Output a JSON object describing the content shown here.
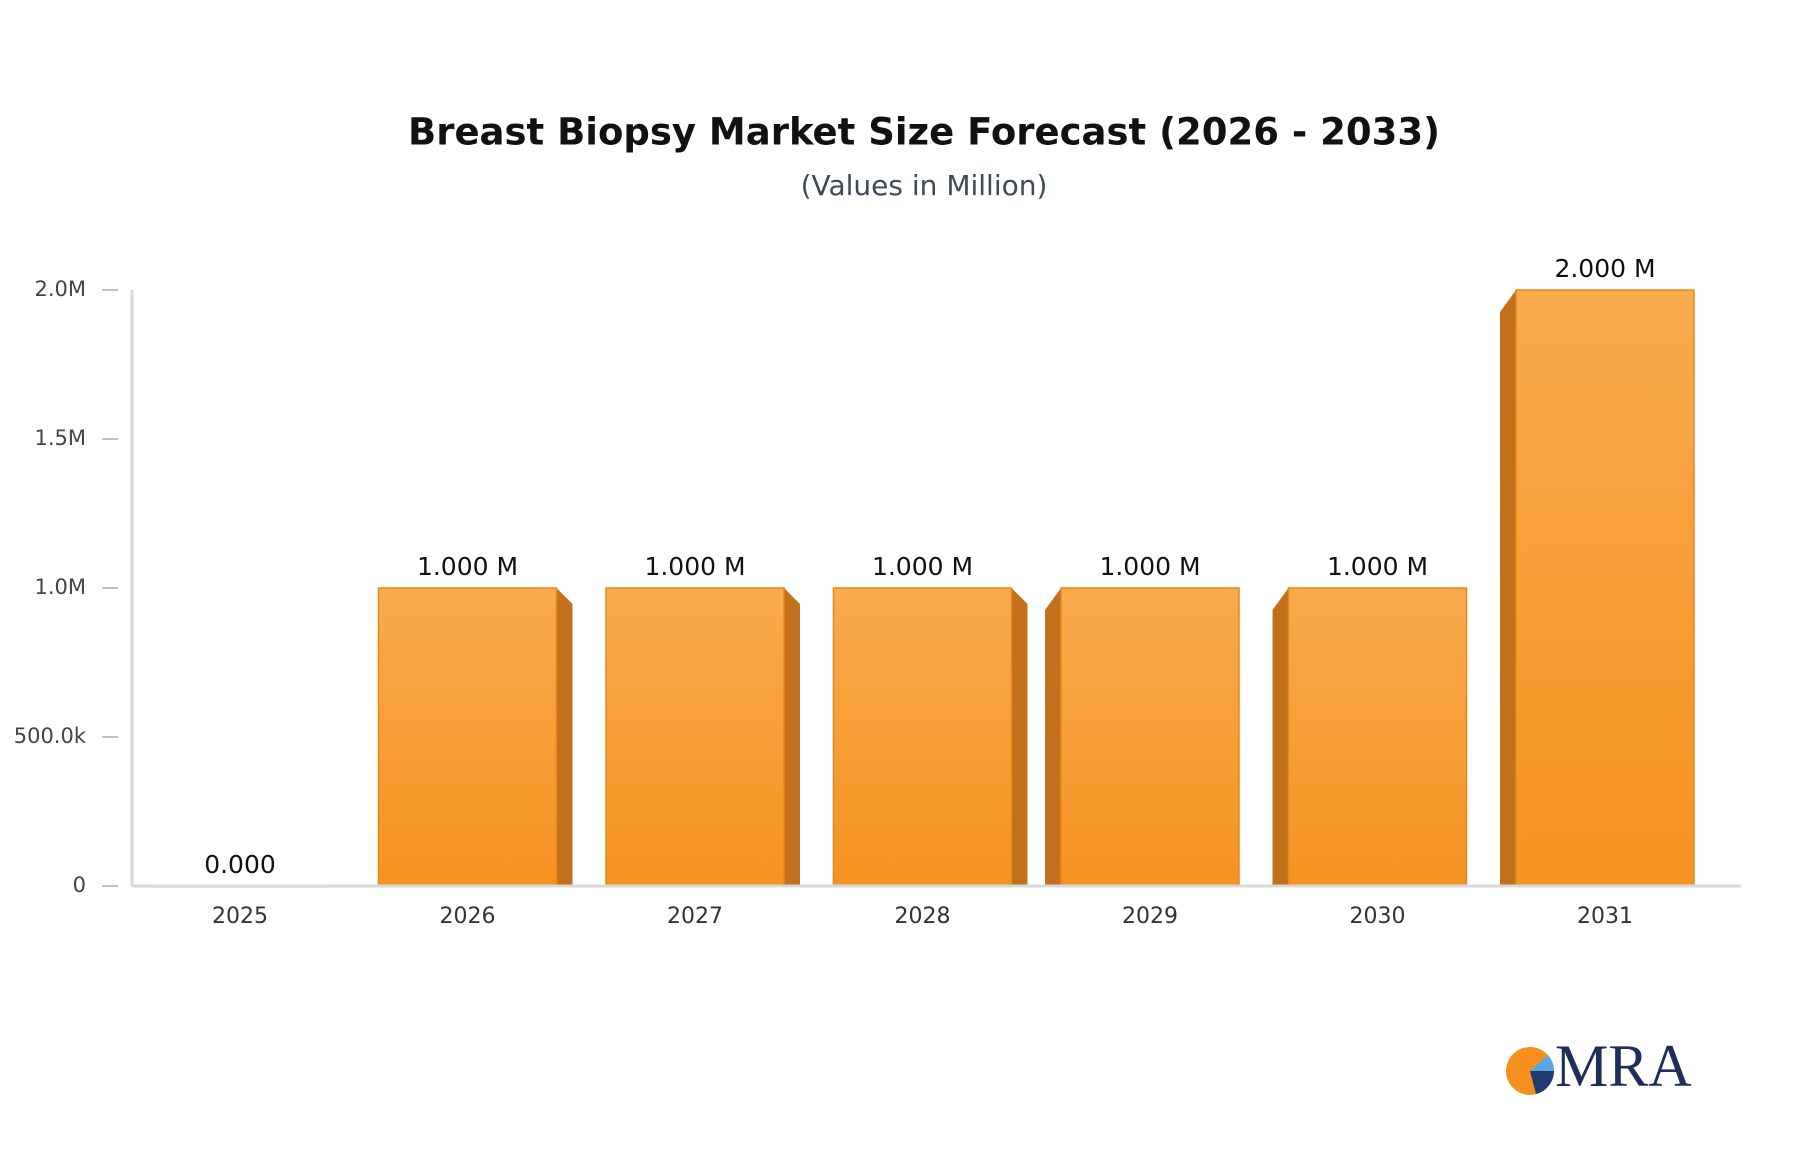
{
  "chart_data": {
    "type": "bar3d",
    "title": "Breast Biopsy Market Size Forecast (2026 - 2033)",
    "subtitle": "(Values in Million)",
    "categories": [
      "2025",
      "2026",
      "2027",
      "2028",
      "2029",
      "2030",
      "2031"
    ],
    "values": [
      0,
      1000000,
      1000000,
      1000000,
      1000000,
      1000000,
      2000000
    ],
    "value_labels": [
      "0.000",
      "1.000 M",
      "1.000 M",
      "1.000 M",
      "1.000 M",
      "1.000 M",
      "2.000 M"
    ],
    "color": "#f7a043",
    "ylim": [
      0,
      2000000
    ],
    "yticks": [
      0,
      {
        "value": 500000,
        "label": "500.0k"
      },
      {
        "value": 1000000,
        "label": "1.0M"
      },
      {
        "value": 1500000,
        "label": "1.5M"
      },
      {
        "value": 2000000,
        "label": "2.0M"
      }
    ],
    "grid": false
  },
  "logo": {
    "text": "MRA"
  }
}
